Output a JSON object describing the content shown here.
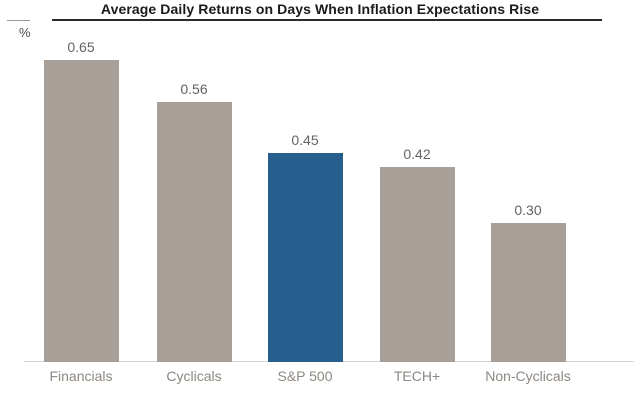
{
  "header": {
    "title": "Average Daily Returns on Days When Inflation Expectations Rise",
    "y_axis_unit": "%"
  },
  "colors": {
    "bar_default": "#a8a098",
    "bar_highlight": "#265e8d",
    "title_text": "#1a1a1a",
    "title_rule": "#2b2b2b",
    "value_label": "#666260",
    "category_label": "#8e8880",
    "axis_line": "#d6d4d2"
  },
  "chart_data": {
    "type": "bar",
    "title": "Average Daily Returns on Days When Inflation Expectations Rise",
    "ylabel": "%",
    "categories": [
      "Financials",
      "Cyclicals",
      "S&P 500",
      "TECH+",
      "Non-Cyclicals"
    ],
    "values": [
      0.65,
      0.56,
      0.45,
      0.42,
      0.3
    ],
    "value_labels": [
      "0.65",
      "0.56",
      "0.45",
      "0.42",
      "0.30"
    ],
    "highlighted_category": "S&P 500",
    "ylim": [
      0,
      0.7
    ],
    "grid": false,
    "legend": false,
    "data_labels_position": "above-bars"
  }
}
